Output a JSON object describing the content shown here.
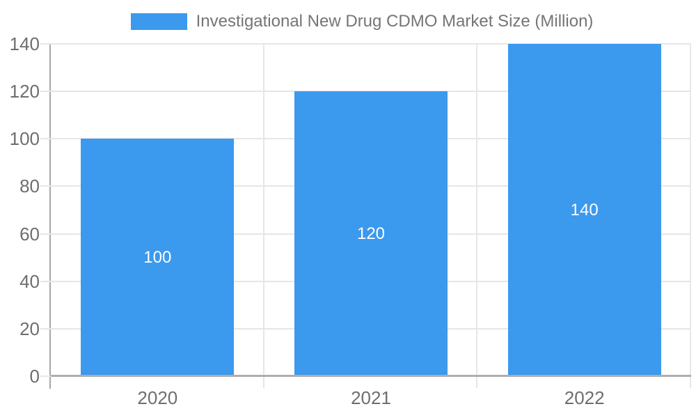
{
  "chart_data": {
    "type": "bar",
    "title": "Investigational New Drug CDMO Market Size (Million)",
    "categories": [
      "2020",
      "2021",
      "2022"
    ],
    "series": [
      {
        "name": "Investigational New Drug CDMO Market Size (Million)",
        "values": [
          100,
          120,
          140
        ]
      }
    ],
    "bar_labels": [
      "100",
      "120",
      "140"
    ],
    "xlabel": "",
    "ylabel": "",
    "ylim": [
      0,
      140
    ],
    "yticks": [
      0,
      20,
      40,
      60,
      80,
      100,
      120,
      140
    ],
    "grid": true,
    "legend_position": "top",
    "colors": {
      "bar": "#3B99EE",
      "bar_label_text": "#FFFFFF",
      "axis_text": "#6E6E6E",
      "legend_text": "#757575",
      "gridline": "#E6E6E6",
      "axis_line": "#AEAEAE",
      "y_axis_line": "#A6A6A6",
      "background": "#FFFFFF"
    }
  }
}
